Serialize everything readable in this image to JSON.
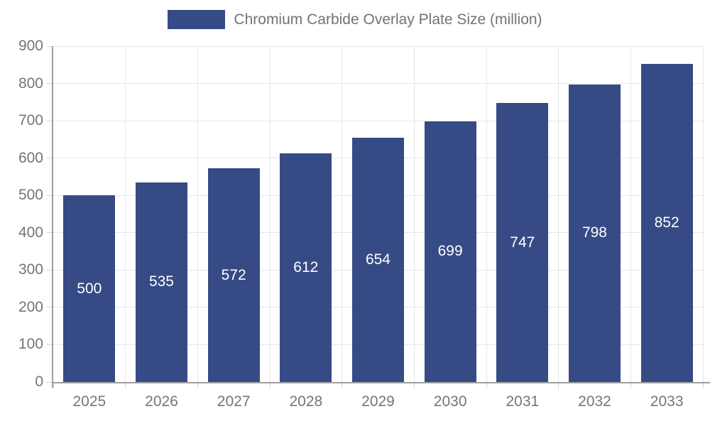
{
  "chart_data": {
    "type": "bar",
    "title": "Chromium Carbide Overlay Plate Size (million)",
    "categories": [
      "2025",
      "2026",
      "2027",
      "2028",
      "2029",
      "2030",
      "2031",
      "2032",
      "2033"
    ],
    "values": [
      500,
      535,
      572,
      612,
      654,
      699,
      747,
      798,
      852
    ],
    "data_labels": [
      "500",
      "535",
      "572",
      "612",
      "654",
      "699",
      "747",
      "798",
      "852"
    ],
    "xlabel": "",
    "ylabel": "",
    "ylim": [
      0,
      900
    ],
    "ytick_labels": [
      "0",
      "100",
      "200",
      "300",
      "400",
      "500",
      "600",
      "700",
      "800",
      "900"
    ],
    "grid": "on",
    "legend_position": "top"
  },
  "legend": {
    "label": "Chromium Carbide Overlay Plate Size (million)"
  },
  "colors": {
    "bar": "#364a85",
    "grid": "#e6e6e6",
    "axis": "#9e9e9e",
    "tick_text": "#757575",
    "value_text": "#ffffff",
    "legend_text": "#737373"
  }
}
